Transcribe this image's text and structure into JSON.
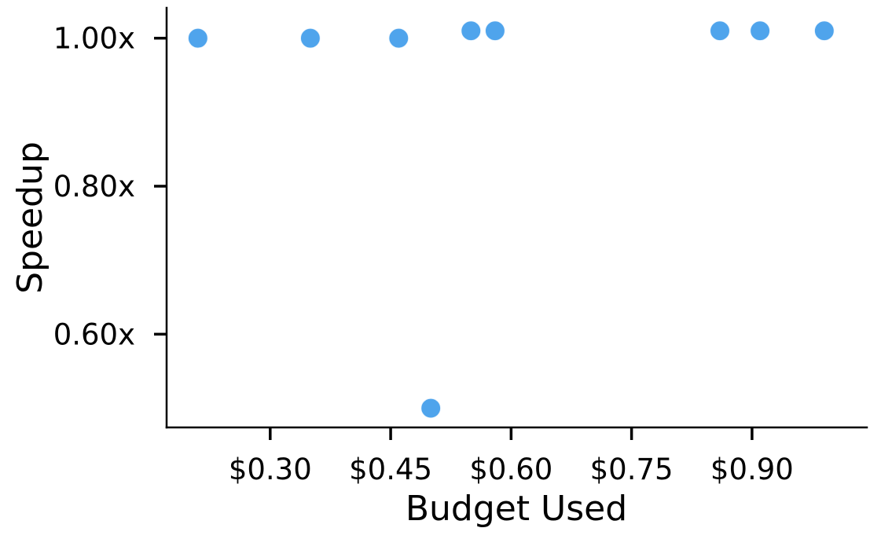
{
  "chart_data": {
    "type": "scatter",
    "title": "",
    "xlabel": "Budget Used",
    "ylabel": "Speedup",
    "x_ticks": [
      {
        "value": 0.3,
        "label": "$0.30"
      },
      {
        "value": 0.45,
        "label": "$0.45"
      },
      {
        "value": 0.6,
        "label": "$0.60"
      },
      {
        "value": 0.75,
        "label": "$0.75"
      },
      {
        "value": 0.9,
        "label": "$0.90"
      }
    ],
    "y_ticks": [
      {
        "value": 1.0,
        "label": "1.00x"
      },
      {
        "value": 0.8,
        "label": "0.80x"
      },
      {
        "value": 0.6,
        "label": "0.60x"
      }
    ],
    "xlim": [
      0.171,
      1.043
    ],
    "ylim": [
      0.474,
      1.041
    ],
    "grid": false,
    "legend": null,
    "marker_color": "#4FA4EC",
    "marker_radius_px": 12.7,
    "points": [
      {
        "x": 0.21,
        "y": 1.0
      },
      {
        "x": 0.35,
        "y": 1.0
      },
      {
        "x": 0.46,
        "y": 1.0
      },
      {
        "x": 0.55,
        "y": 1.01
      },
      {
        "x": 0.58,
        "y": 1.01
      },
      {
        "x": 0.86,
        "y": 1.01
      },
      {
        "x": 0.91,
        "y": 1.01
      },
      {
        "x": 0.99,
        "y": 1.01
      },
      {
        "x": 0.5,
        "y": 0.5
      }
    ]
  }
}
